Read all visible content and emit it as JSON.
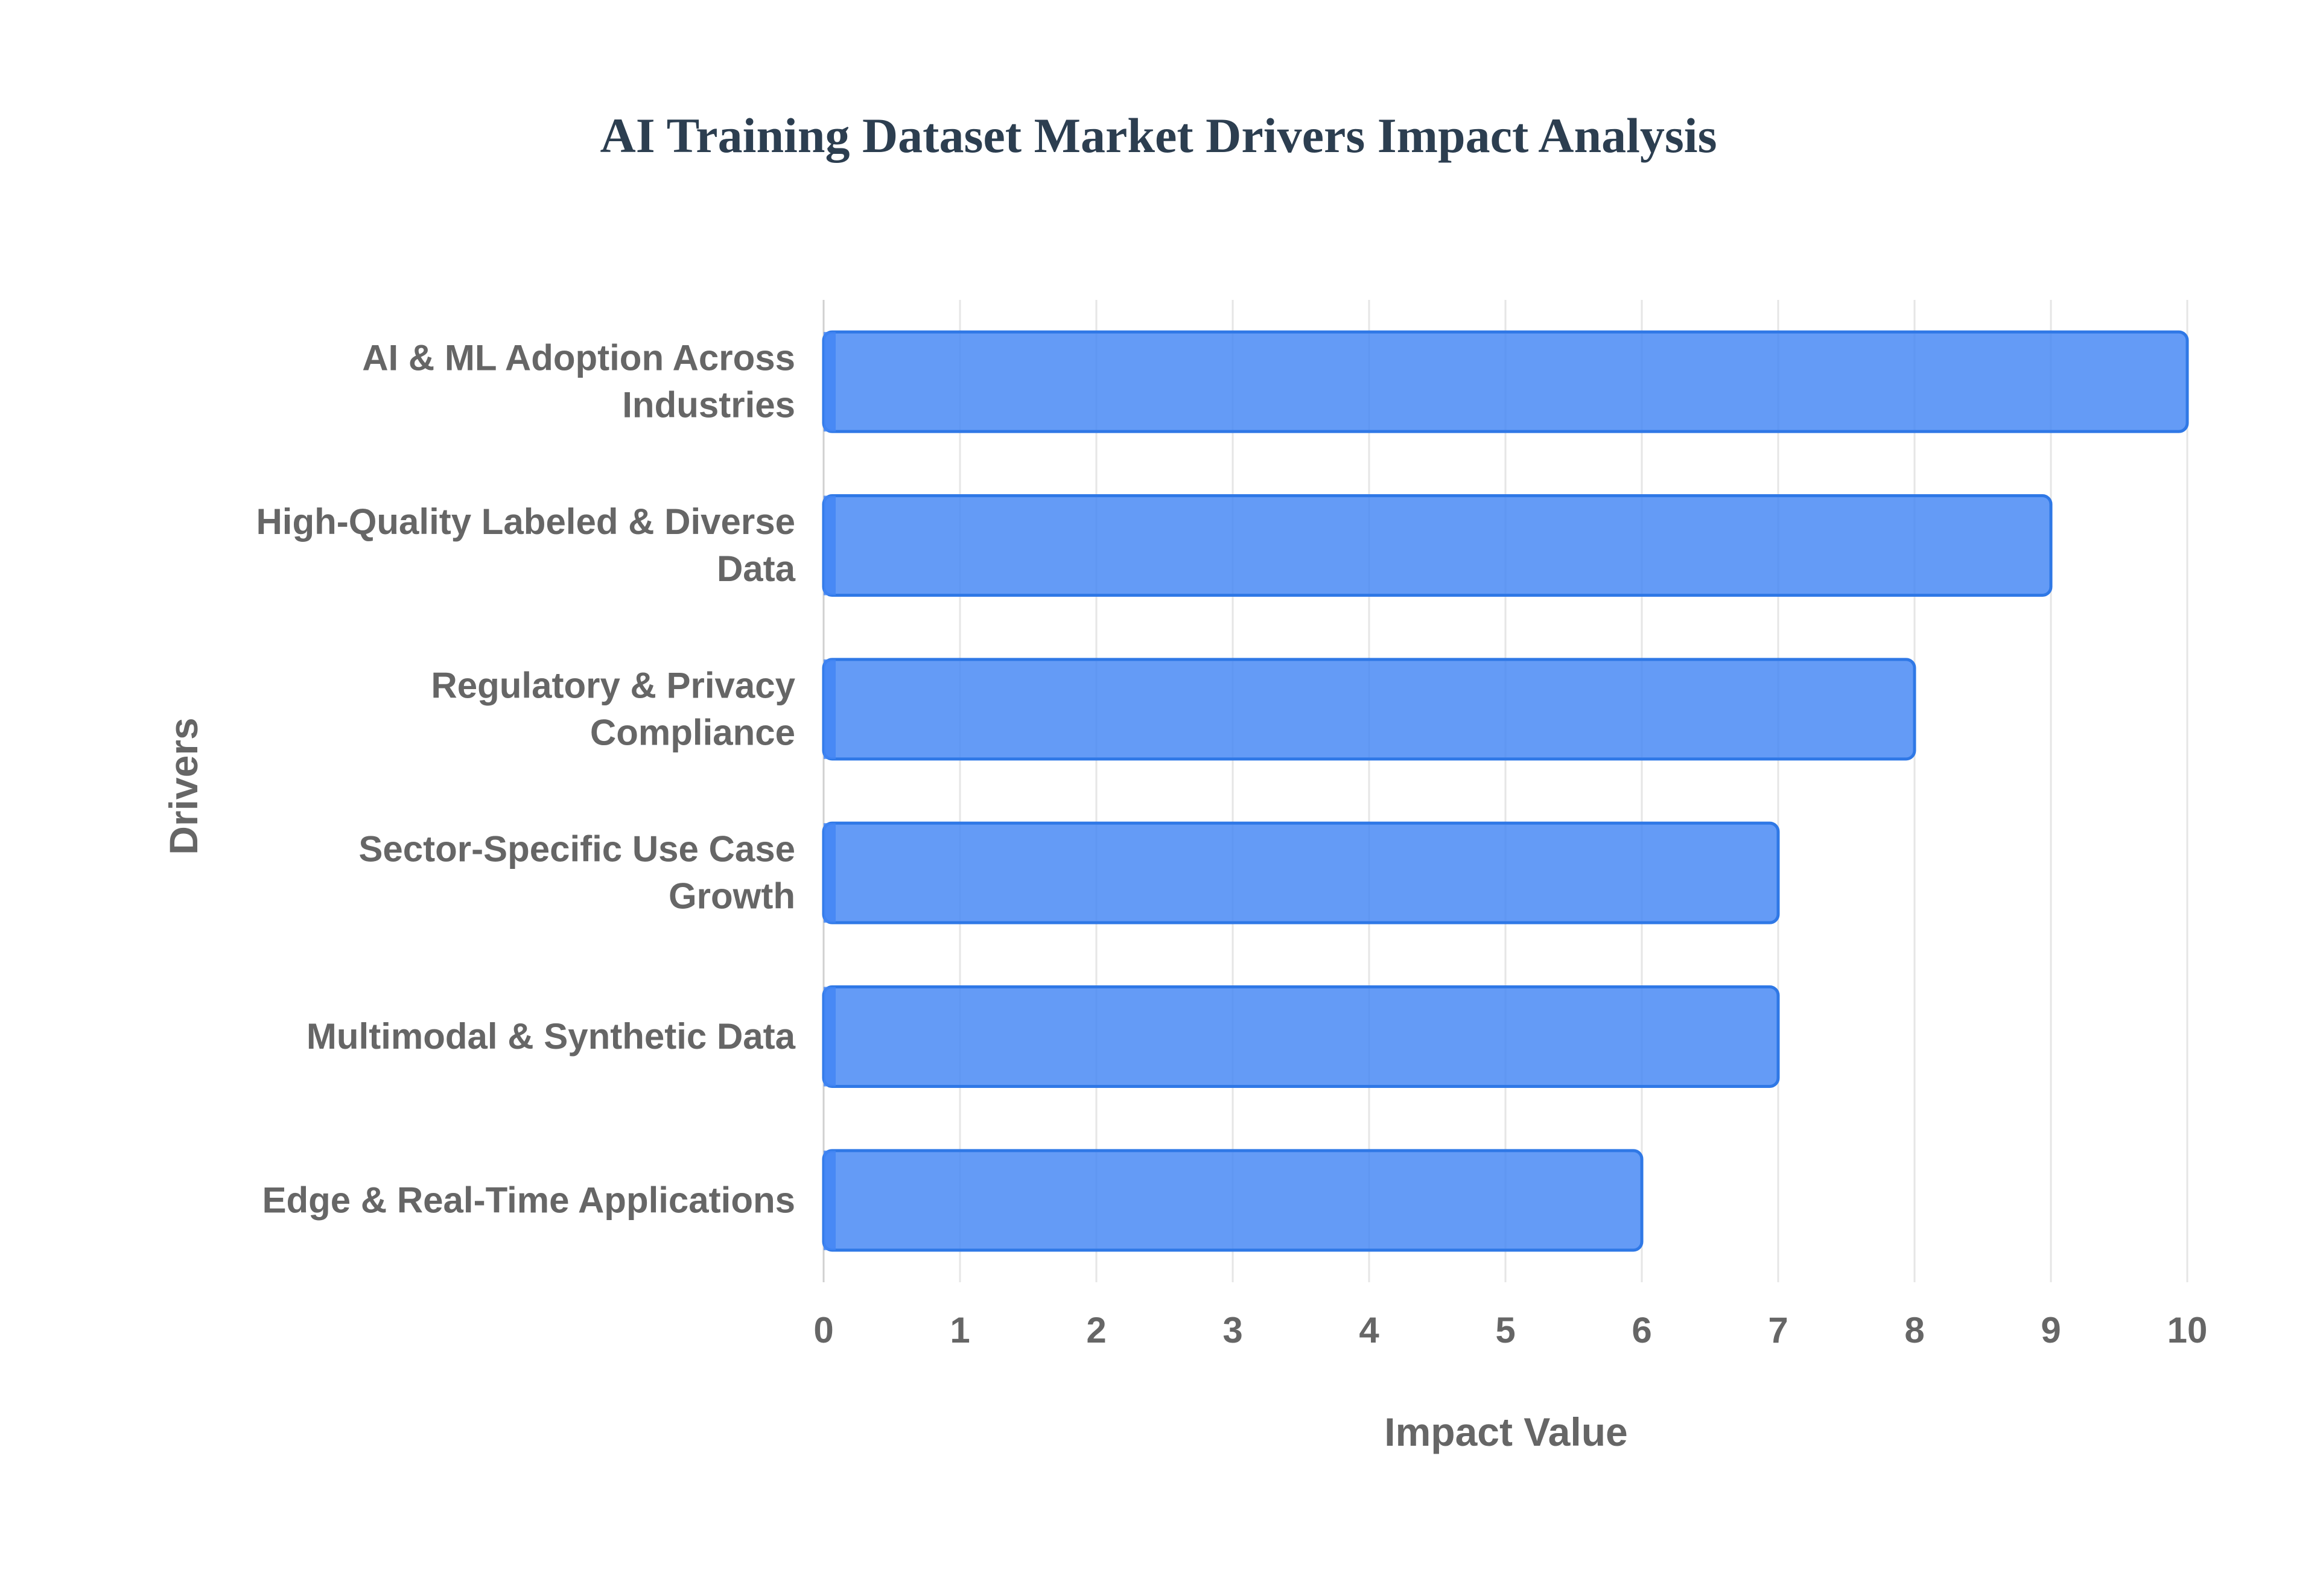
{
  "chart_data": {
    "type": "bar",
    "orientation": "horizontal",
    "title": "AI Training Dataset Market Drivers Impact Analysis",
    "xlabel": "Impact Value",
    "ylabel": "Drivers",
    "categories": [
      [
        "AI & ML Adoption Across",
        "Industries"
      ],
      [
        "High-Quality Labeled & Diverse",
        "Data"
      ],
      [
        "Regulatory & Privacy",
        "Compliance"
      ],
      [
        "Sector-Specific Use Case",
        "Growth"
      ],
      [
        "Multimodal & Synthetic Data"
      ],
      [
        "Edge & Real-Time Applications"
      ]
    ],
    "values": [
      10,
      9,
      8,
      7,
      7,
      6
    ],
    "xlim": [
      0,
      10
    ],
    "xticks": [
      "0",
      "1",
      "2",
      "3",
      "4",
      "5",
      "6",
      "7",
      "8",
      "9",
      "10"
    ],
    "grid": true,
    "legend": "none",
    "colors": {
      "bar_fill": "#4285f4",
      "bar_fill_opacity": 0.82,
      "bar_stroke": "#2f78e6",
      "title": "#2c3e50",
      "axis_text": "#666666",
      "grid": "#e6e6e6"
    }
  }
}
